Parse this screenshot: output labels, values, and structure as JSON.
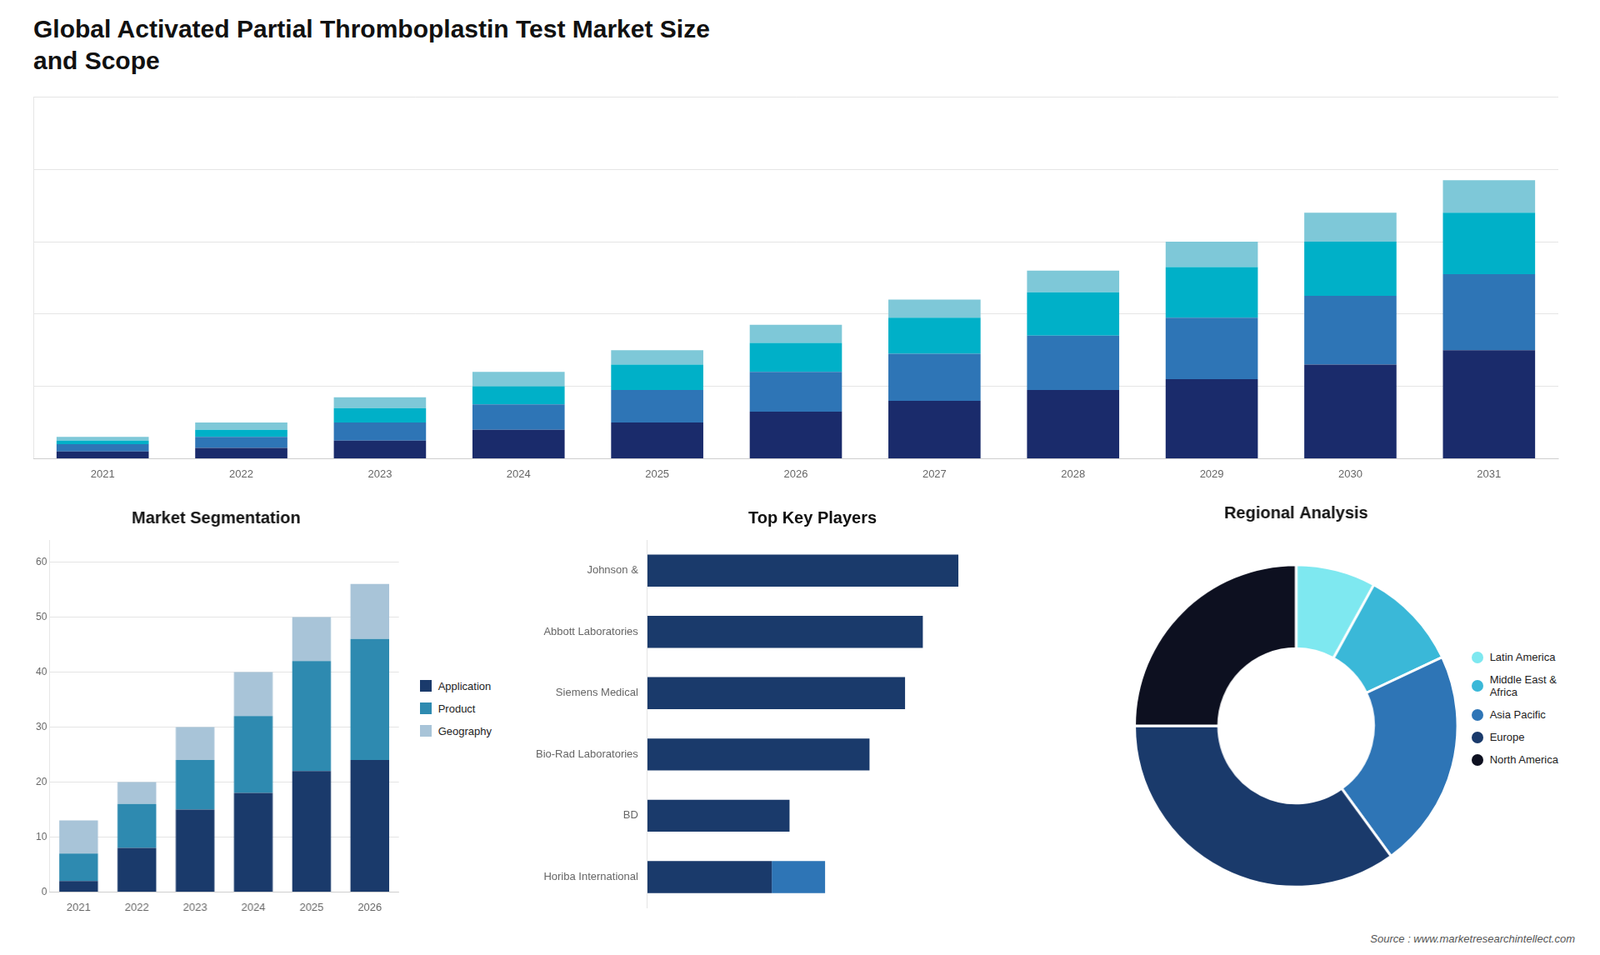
{
  "title": "Global Activated Partial Thromboplastin Test Market Size\nand Scope",
  "annotations": [
    "Source : www.marketresearchintellect.com"
  ],
  "chart_data": [
    {
      "type": "bar",
      "stacked": true,
      "categories": [
        "2021",
        "2022",
        "2023",
        "2024",
        "2025",
        "2026",
        "2027",
        "2028",
        "2029",
        "2030",
        "2031"
      ],
      "series": [
        {
          "color": "#1a2b6b",
          "values": [
            2,
            3,
            5,
            8,
            10,
            13,
            16,
            19,
            22,
            26,
            30
          ]
        },
        {
          "color": "#2e75b6",
          "values": [
            2,
            3,
            5,
            7,
            9,
            11,
            13,
            15,
            17,
            19,
            21
          ]
        },
        {
          "color": "#00b0c8",
          "values": [
            1,
            2,
            4,
            5,
            7,
            8,
            10,
            12,
            14,
            15,
            17
          ]
        },
        {
          "color": "#7ec8d8",
          "values": [
            1,
            2,
            3,
            4,
            4,
            5,
            5,
            6,
            7,
            8,
            9
          ]
        }
      ],
      "ylim": [
        0,
        100.1
      ],
      "yticks": [
        0,
        20,
        40,
        60,
        80,
        100
      ],
      "grid": true,
      "tick_labels": "x"
    },
    {
      "type": "bar",
      "stacked": true,
      "title": "Market Segmentation",
      "categories": [
        "2021",
        "2022",
        "2023",
        "2024",
        "2025",
        "2026"
      ],
      "series": [
        {
          "name": "Application",
          "color": "#1a3a6b",
          "values": [
            2,
            8,
            15,
            18,
            22,
            24
          ]
        },
        {
          "name": "Product",
          "color": "#2e8ab0",
          "values": [
            5,
            8,
            9,
            14,
            20,
            22
          ]
        },
        {
          "name": "Geography",
          "color": "#a8c4d8",
          "values": [
            6,
            4,
            6,
            8,
            8,
            10
          ]
        }
      ],
      "ylim": [
        0,
        64
      ],
      "yticks": [
        0,
        10,
        20,
        30,
        40,
        50,
        60
      ],
      "grid": true,
      "legend": "right"
    },
    {
      "type": "bar",
      "orientation": "horizontal",
      "stacked": true,
      "title": "Top Key Players",
      "categories": [
        "Johnson &",
        "Abbott Laboratories",
        "Siemens Medical",
        "Bio-Rad Laboratories",
        "BD",
        "Horiba International"
      ],
      "series": [
        {
          "color": "#1a3a6b",
          "values": [
            7.0,
            6.2,
            5.8,
            5.0,
            3.2,
            2.8
          ]
        },
        {
          "color": "#2e75b6",
          "values": [
            0,
            0,
            0,
            0,
            0,
            1.2
          ]
        }
      ],
      "xlim": [
        0,
        10
      ],
      "grid": false,
      "tick_labels": "y"
    },
    {
      "type": "doughnut",
      "title": "Regional Analysis",
      "categories": [
        "Latin America",
        "Middle East &\nAfrica",
        "Asia Pacific",
        "Europe",
        "North America"
      ],
      "values": [
        8,
        10,
        22,
        35,
        25
      ],
      "colors": [
        "#7ee8f0",
        "#3ab8d8",
        "#2e75b6",
        "#1a3a6b",
        "#0d1020"
      ],
      "legend": "right"
    }
  ]
}
